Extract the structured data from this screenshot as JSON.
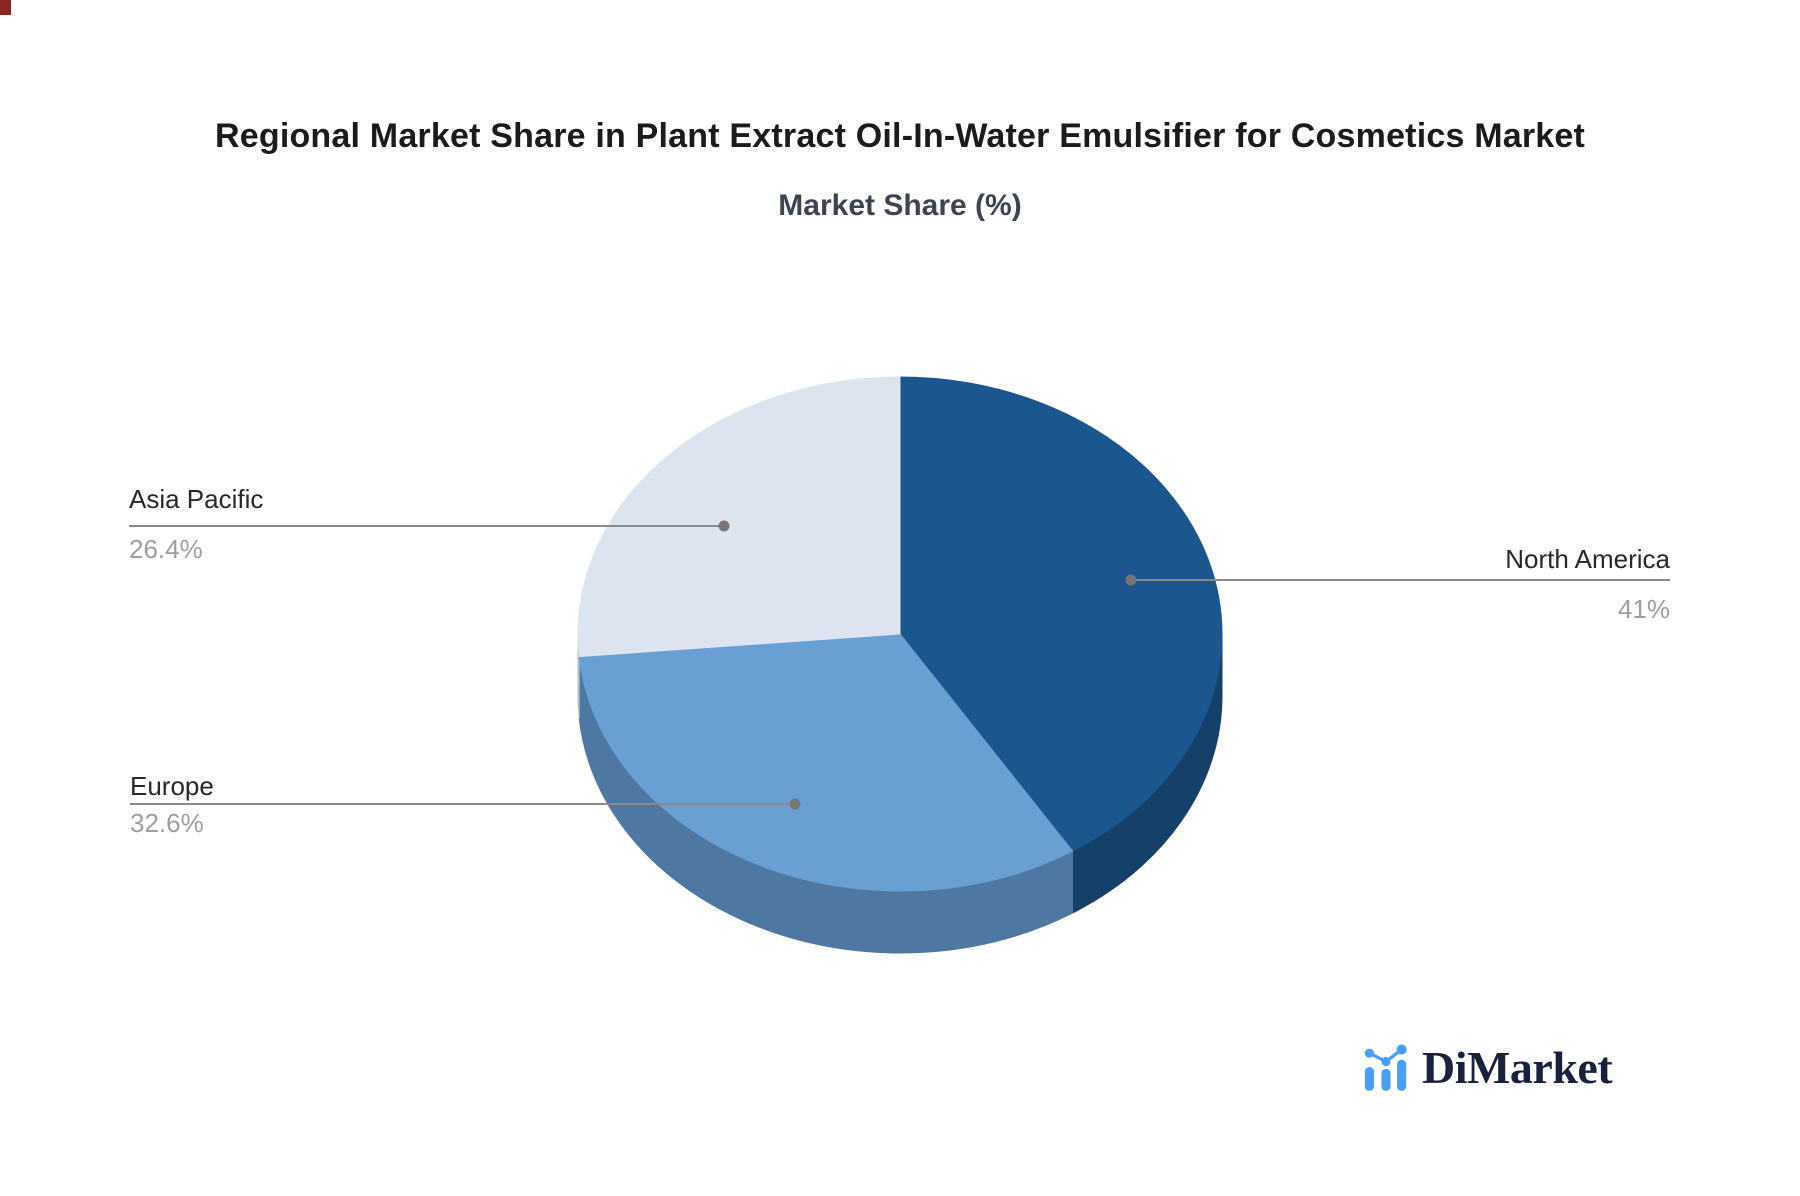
{
  "page": {
    "background": "#ffffff",
    "corner_marker_color": "#8E2424"
  },
  "chart_data": {
    "type": "pie",
    "title": "Regional Market Share in Plant Extract Oil-In-Water Emulsifier for Cosmetics Market",
    "subtitle": "Market Share (%)",
    "unit": "%",
    "effect_3d": true,
    "start_angle": "top",
    "direction": "clockwise",
    "legend_position": "none",
    "label_style": "leader-line-callouts",
    "slices": [
      {
        "label": "North America",
        "value": 41,
        "display": "41%",
        "color": "#1B578E",
        "side_color": "#14406A"
      },
      {
        "label": "Europe",
        "value": 32.6,
        "display": "32.6%",
        "color": "#6A9FD4",
        "side_color": "#4E78A2"
      },
      {
        "label": "Asia Pacific",
        "value": 26.4,
        "display": "26.4%",
        "color": "#DCE4EF",
        "side_color": "#AEBBD0"
      }
    ]
  },
  "callouts": {
    "line_color": "#8A8A8A",
    "dot_color": "#767676",
    "name_color": "#26282B",
    "value_color": "#9E9E9E"
  },
  "branding": {
    "logo_text": "DiMarket",
    "logo_icon": "bar-line-chart-icon",
    "logo_text_color": "#18223E",
    "logo_icon_color": "#47A0F5"
  }
}
